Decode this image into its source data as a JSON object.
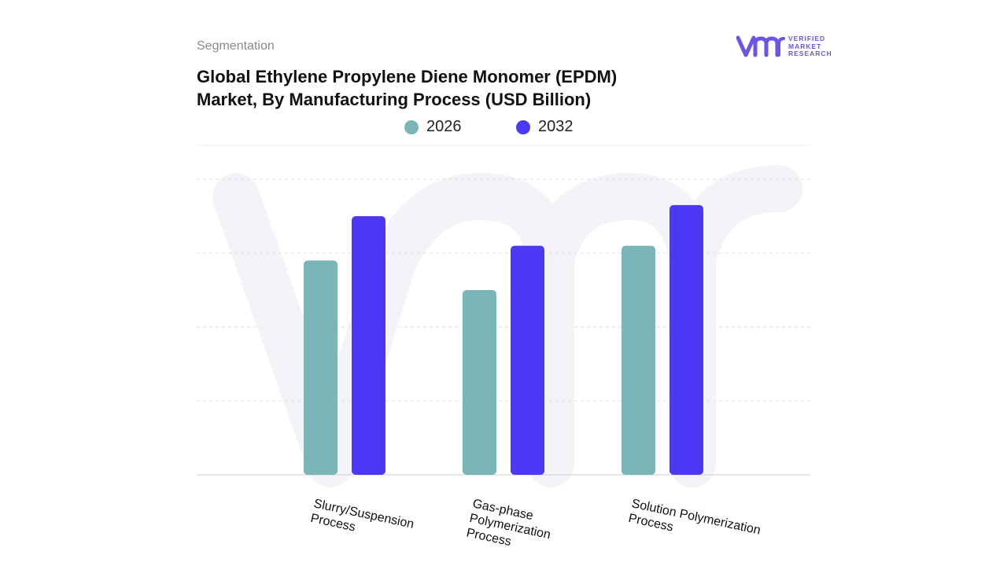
{
  "header": {
    "segmentation": "Segmentation",
    "title_line1": "Global Ethylene Propylene Diene Monomer (EPDM)",
    "title_line2": "Market, By Manufacturing Process (USD Billion)"
  },
  "logo": {
    "icon": "vmr-logo-icon",
    "line1": "VERIFIED",
    "line2": "MARKET",
    "line3": "RESEARCH"
  },
  "colors": {
    "series_2026": "#7ab5b8",
    "series_2032": "#4b39f5",
    "grid": "#e2e2e2",
    "logo": "#6a55e8"
  },
  "chart_data": {
    "type": "bar",
    "title": "Global Ethylene Propylene Diene Monomer (EPDM) Market, By Manufacturing Process (USD Billion)",
    "categories": [
      [
        "Slurry/Suspension",
        "Process"
      ],
      [
        "Gas-phase",
        "Polymerization",
        "Process"
      ],
      [
        "Solution Polymerization",
        "Process"
      ]
    ],
    "series": [
      {
        "name": "2026",
        "values": [
          2.9,
          2.5,
          3.1
        ]
      },
      {
        "name": "2032",
        "values": [
          3.5,
          3.1,
          3.65
        ]
      }
    ],
    "ylim": [
      0,
      4.0
    ],
    "grid": true,
    "legend_position": "top-center",
    "xlabel": "",
    "ylabel": ""
  }
}
